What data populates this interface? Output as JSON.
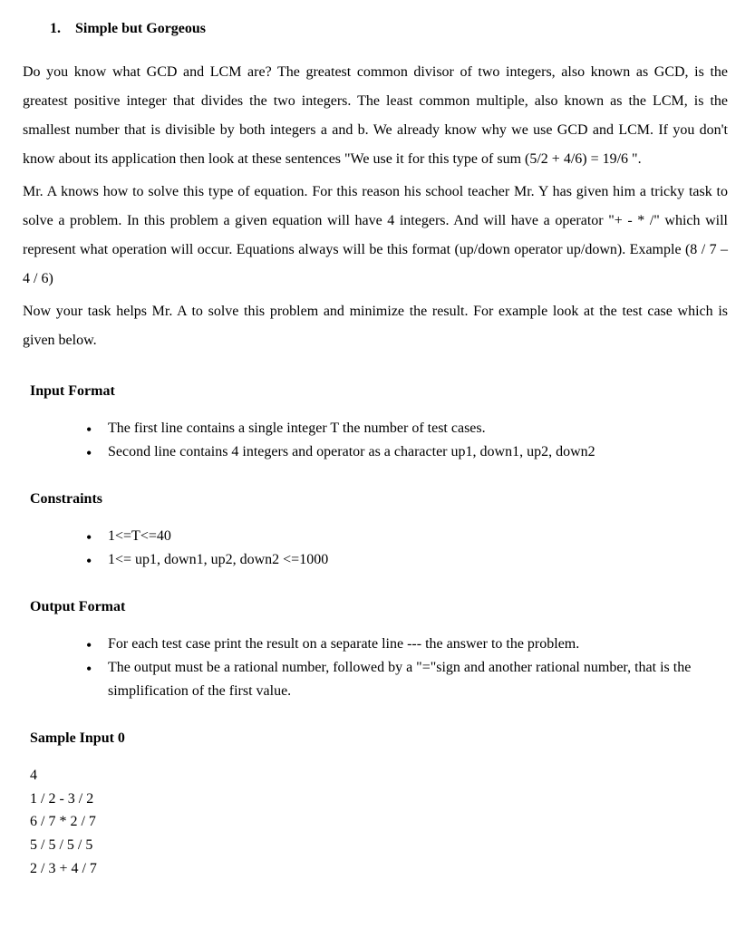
{
  "title": {
    "number": "1.",
    "text": "Simple but Gorgeous"
  },
  "paragraphs": {
    "p1": "Do you know what GCD and LCM are? The greatest common divisor of two integers, also known as GCD, is the greatest positive integer that divides the two integers. The least common multiple, also known as the LCM, is the smallest number that is divisible by both integers a and b. We already know why we use GCD and LCM. If you don't know about its application then look at these sentences \"We use it for this type of sum (5/2 + 4/6) = 19/6 \".",
    "p2": "Mr. A knows how to solve this type of equation. For this reason his school teacher Mr. Y has given him a tricky task to solve a problem. In this problem a given equation will have 4 integers. And will have a operator \"+ - * /\" which will represent what operation will occur. Equations always will be this format (up/down operator up/down). Example (8 / 7 – 4 / 6)",
    "p3": "Now your task helps Mr. A to solve this problem and minimize the result. For example look at the test case which is given below."
  },
  "sections": {
    "input_format": {
      "heading": "Input Format",
      "items": [
        "The first line contains a single integer T the number of test cases.",
        "Second line contains 4 integers and operator as a character up1, down1, up2, down2"
      ]
    },
    "constraints": {
      "heading": "Constraints",
      "items": [
        "1<=T<=40",
        "1<= up1, down1, up2, down2 <=1000"
      ]
    },
    "output_format": {
      "heading": "Output Format",
      "items": [
        "For each test case print the result on a separate line --- the answer to the problem.",
        "The output must be a rational number, followed by a \"=\"sign and another rational number, that is the simplification of the first value."
      ]
    },
    "sample_input": {
      "heading": "Sample Input 0",
      "lines": [
        "4",
        "1 / 2 - 3 / 2",
        "6 / 7 * 2 / 7",
        "5 / 5 / 5 / 5",
        "2 / 3 + 4 / 7"
      ]
    }
  }
}
